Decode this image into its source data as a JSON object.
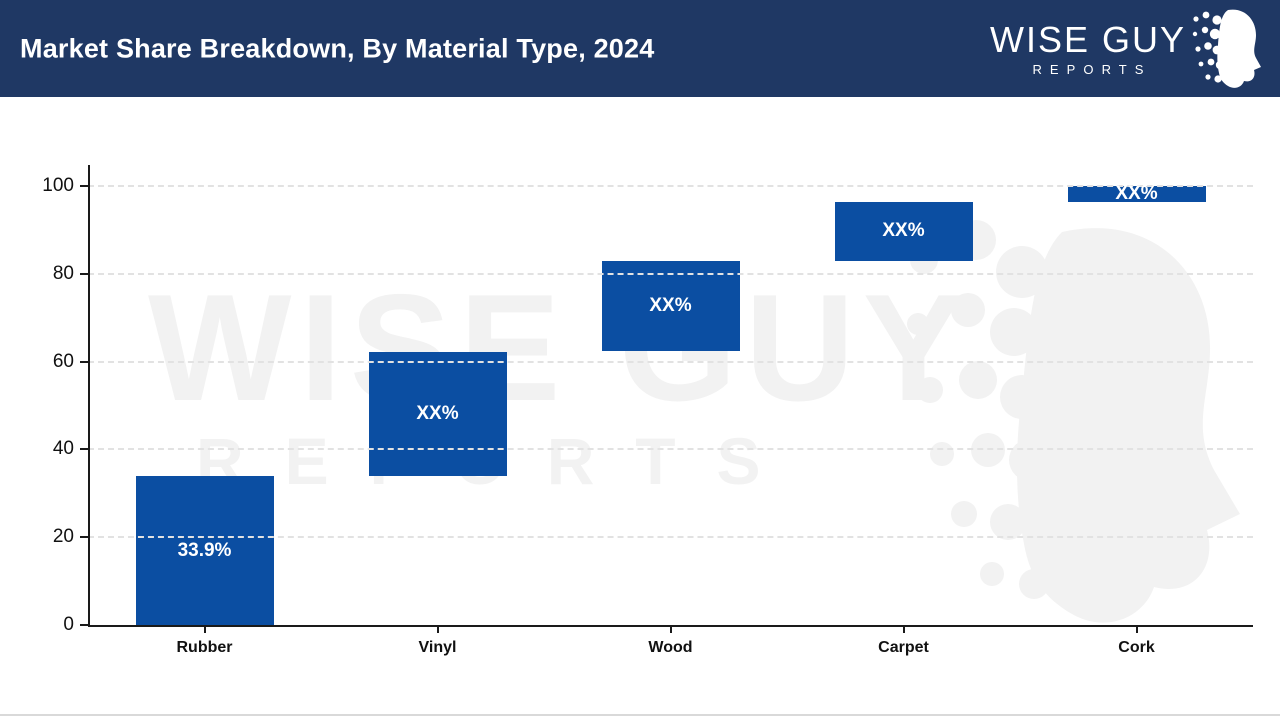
{
  "header": {
    "title": "Market Share Breakdown, By Material Type, 2024",
    "background_color": "#1F3864",
    "logo": {
      "line1": "WISE GUY",
      "line2": "REPORTS"
    }
  },
  "watermark": {
    "line1": "WISE GUY",
    "line2": "REPORTS"
  },
  "chart_data": {
    "type": "bar",
    "subtype": "waterfall",
    "title": "Market Share Breakdown, By Material Type, 2024",
    "categories": [
      "Rubber",
      "Vinyl",
      "Wood",
      "Carpet",
      "Cork"
    ],
    "segments": [
      {
        "category": "Rubber",
        "start": 0,
        "end": 33.9,
        "label": "33.9%"
      },
      {
        "category": "Vinyl",
        "start": 33.9,
        "end": 62.3,
        "label": "XX%"
      },
      {
        "category": "Wood",
        "start": 62.3,
        "end": 83.0,
        "label": "XX%"
      },
      {
        "category": "Carpet",
        "start": 83.0,
        "end": 96.4,
        "label": "XX%"
      },
      {
        "category": "Cork",
        "start": 96.4,
        "end": 100.0,
        "label": "XX%"
      }
    ],
    "xlabel": "",
    "ylabel": "",
    "ylim": [
      0,
      100
    ],
    "yticks": [
      0,
      20,
      40,
      60,
      80,
      100
    ],
    "grid": "horizontal-dashed",
    "legend": "none",
    "bar_color": "#0B4EA2",
    "bar_value_label_color": "#FFFFFF",
    "axis_color": "#1A1A1A"
  }
}
